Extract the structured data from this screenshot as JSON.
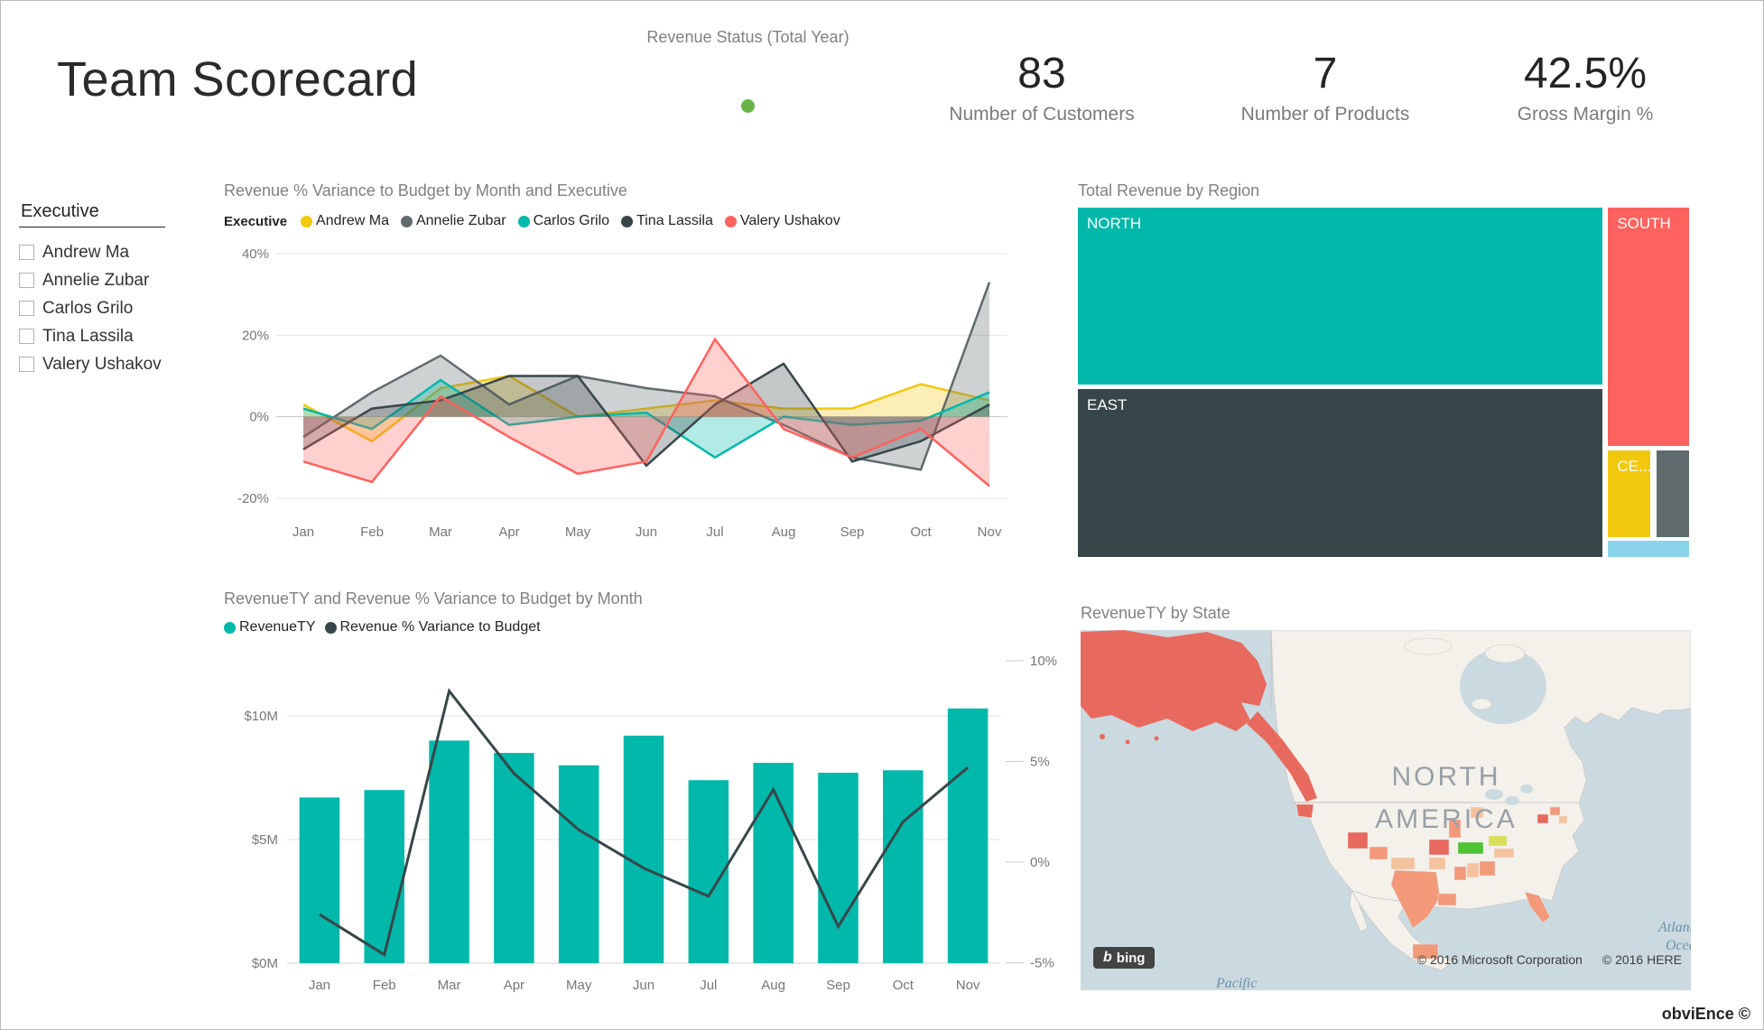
{
  "page": {
    "title": "Team Scorecard",
    "footer": "obviEnce ©"
  },
  "header": {
    "revenue_status": {
      "label": "Revenue Status (Total Year)",
      "status_color": "#67B346"
    },
    "cards": [
      {
        "value": "83",
        "label": "Number of Customers"
      },
      {
        "value": "7",
        "label": "Number of Products"
      },
      {
        "value": "42.5%",
        "label": "Gross Margin %"
      }
    ]
  },
  "slicer": {
    "title": "Executive",
    "items": [
      {
        "label": "Andrew Ma",
        "checked": false
      },
      {
        "label": "Annelie Zubar",
        "checked": false
      },
      {
        "label": "Carlos Grilo",
        "checked": false
      },
      {
        "label": "Tina Lassila",
        "checked": false
      },
      {
        "label": "Valery Ushakov",
        "checked": false
      }
    ]
  },
  "chart_data": [
    {
      "type": "area",
      "title": "Revenue % Variance to Budget by Month and Executive",
      "legend_title": "Executive",
      "legend_position": "top",
      "grid": true,
      "categories": [
        "Jan",
        "Feb",
        "Mar",
        "Apr",
        "May",
        "Jun",
        "Jul",
        "Aug",
        "Sep",
        "Oct",
        "Nov"
      ],
      "ylim": [
        -24,
        42
      ],
      "yticks": [
        40,
        20,
        0,
        -20
      ],
      "ytick_suffix": "%",
      "series": [
        {
          "name": "Andrew Ma",
          "color": "#F2C80F",
          "values": [
            3,
            -6,
            7,
            10,
            0,
            2,
            4,
            2,
            2,
            8,
            4
          ]
        },
        {
          "name": "Annelie Zubar",
          "color": "#5F6B6D",
          "values": [
            -5,
            6,
            15,
            3,
            10,
            7,
            5,
            -2,
            -10,
            -13,
            33
          ]
        },
        {
          "name": "Carlos Grilo",
          "color": "#01B8AA",
          "values": [
            2,
            -3,
            9,
            -2,
            0,
            1,
            -10,
            0,
            -2,
            -1,
            6
          ]
        },
        {
          "name": "Tina Lassila",
          "color": "#374649",
          "values": [
            -8,
            2,
            4,
            10,
            10,
            -12,
            3,
            13,
            -11,
            -6,
            3
          ]
        },
        {
          "name": "Valery Ushakov",
          "color": "#FD625E",
          "values": [
            -11,
            -16,
            5,
            -5,
            -14,
            -11,
            19,
            -3,
            -10,
            -3,
            -17
          ]
        }
      ]
    },
    {
      "type": "combo",
      "title": "RevenueTY and Revenue % Variance to Budget by Month",
      "legend_position": "top",
      "categories": [
        "Jan",
        "Feb",
        "Mar",
        "Apr",
        "May",
        "Jun",
        "Jul",
        "Aug",
        "Sep",
        "Oct",
        "Nov"
      ],
      "bars": {
        "name": "RevenueTY",
        "color": "#01B8AA",
        "unit": "$M",
        "values": [
          6.7,
          7.0,
          9.0,
          8.5,
          8.0,
          9.2,
          7.4,
          8.1,
          7.7,
          7.8,
          10.3
        ]
      },
      "line": {
        "name": "Revenue % Variance to Budget",
        "color": "#374649",
        "unit": "%",
        "values": [
          -2.6,
          -4.6,
          8.5,
          4.4,
          1.6,
          -0.3,
          -1.7,
          3.6,
          -3.2,
          2.0,
          4.7
        ]
      },
      "left_axis": {
        "ticks": [
          0,
          5,
          10
        ],
        "labels": [
          "$0M",
          "$5M",
          "$10M"
        ]
      },
      "right_axis": {
        "ticks": [
          -5,
          0,
          5,
          10
        ],
        "labels": [
          "-5%",
          "0%",
          "5%",
          "10%"
        ]
      }
    },
    {
      "type": "treemap",
      "title": "Total Revenue by Region",
      "items": [
        {
          "label": "NORTH",
          "color": "#01B8AA",
          "x": 0,
          "y": 0,
          "w": 0.859,
          "h": 0.51
        },
        {
          "label": "EAST",
          "color": "#374649",
          "x": 0,
          "y": 0.516,
          "w": 0.859,
          "h": 0.484
        },
        {
          "label": "SOUTH",
          "color": "#FD625E",
          "x": 0.865,
          "y": 0,
          "w": 0.135,
          "h": 0.685
        },
        {
          "label": "CE...",
          "color": "#F2C80F",
          "x": 0.865,
          "y": 0.691,
          "w": 0.072,
          "h": 0.252
        },
        {
          "label": "",
          "color": "#5F6B6D",
          "x": 0.944,
          "y": 0.691,
          "w": 0.056,
          "h": 0.252
        },
        {
          "label": "",
          "color": "#8AD4EB",
          "x": 0.865,
          "y": 0.949,
          "w": 0.135,
          "h": 0.051
        }
      ]
    },
    {
      "type": "map",
      "title": "RevenueTY by State",
      "provider": "bing",
      "region_label": [
        "NORTH",
        "AMERICA"
      ],
      "ocean_labels": [
        "Atlant",
        "Ocea",
        "Pacific"
      ],
      "attribution": [
        "© 2016 Microsoft Corporation",
        "© 2016 HERE"
      ]
    }
  ]
}
